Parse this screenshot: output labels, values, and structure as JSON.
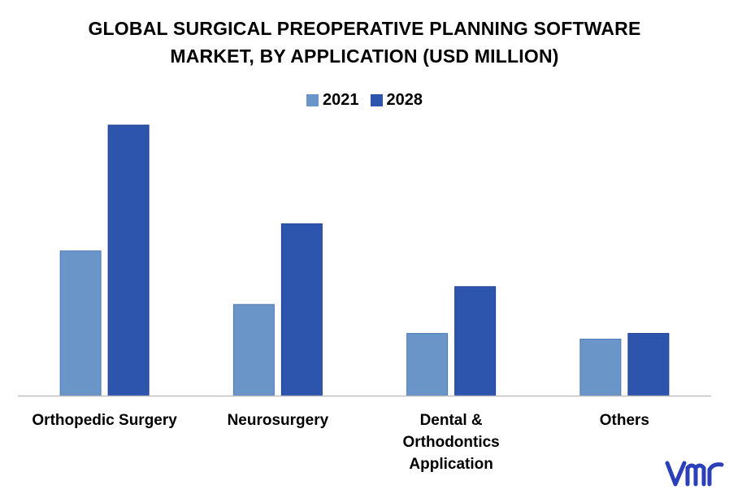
{
  "title": {
    "line1": "GLOBAL SURGICAL PREOPERATIVE PLANNING SOFTWARE",
    "line2": "MARKET, BY APPLICATION (USD MILLION)"
  },
  "legend": [
    {
      "label": "2021",
      "color": "#6a95c9"
    },
    {
      "label": "2028",
      "color": "#2e55ad"
    }
  ],
  "category_labels": [
    [
      "Orthopedic Surgery"
    ],
    [
      "Neurosurgery"
    ],
    [
      "Dental &",
      "Orthodontics",
      "Application"
    ],
    [
      "Others"
    ]
  ],
  "logo": {
    "icon": "vmr-logo",
    "text": "vmr",
    "color": "#2b3fb8"
  },
  "chart_data": {
    "type": "bar",
    "title": "GLOBAL SURGICAL PREOPERATIVE PLANNING SOFTWARE MARKET, BY APPLICATION (USD MILLION)",
    "categories": [
      "Orthopedic Surgery",
      "Neurosurgery",
      "Dental & Orthodontics Application",
      "Others"
    ],
    "series": [
      {
        "name": "2021",
        "color": "#6a95c9",
        "values": [
          53.5,
          33.7,
          23.0,
          20.9
        ]
      },
      {
        "name": "2028",
        "color": "#2e55ad",
        "values": [
          100,
          63.5,
          40.3,
          23.0
        ]
      }
    ],
    "ylim": [
      0,
      100
    ],
    "xlabel": "",
    "ylabel": "",
    "grid": false,
    "legend_position": "top-center",
    "axis_color": "#bfbfbf"
  }
}
